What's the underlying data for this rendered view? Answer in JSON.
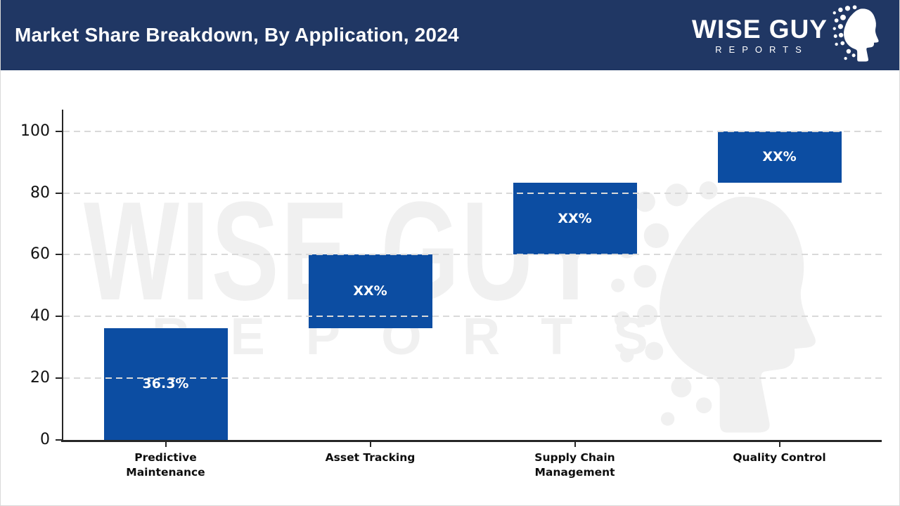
{
  "header": {
    "title": "Market Share Breakdown, By Application, 2024",
    "brand": {
      "line1": "WISE GUY",
      "line2": "REPORTS"
    }
  },
  "watermark": {
    "line1": "WISE GUY",
    "line2": "REPORTS"
  },
  "chart_data": {
    "type": "bar",
    "subtype": "waterfall",
    "title": "Market Share Breakdown, By Application, 2024",
    "categories": [
      [
        "Predictive",
        "Maintenance"
      ],
      [
        "Asset Tracking"
      ],
      [
        "Supply Chain",
        "Management"
      ],
      [
        "Quality Control"
      ]
    ],
    "bars": [
      {
        "name": "Predictive Maintenance",
        "start": 0,
        "end": 36.3,
        "label": "36.3%"
      },
      {
        "name": "Asset Tracking",
        "start": 36.3,
        "end": 60.2,
        "label": "XX%"
      },
      {
        "name": "Supply Chain Management",
        "start": 60.2,
        "end": 83.3,
        "label": "XX%"
      },
      {
        "name": "Quality Control",
        "start": 83.3,
        "end": 100,
        "label": "XX%"
      }
    ],
    "yticks": [
      0,
      20,
      40,
      60,
      80,
      100
    ],
    "ylim": [
      0,
      107
    ],
    "grid": true,
    "grid_style": "dashed",
    "grid_on_top": true,
    "legend": null,
    "colors": {
      "bar": "#0c4da2",
      "value_label": "#ffffff",
      "gridline": "#d9d9d9",
      "axis": "#262626",
      "tick_text": "#111111",
      "header_bg": "#203764",
      "header_text": "#ffffff",
      "watermark": "#f0f0f0",
      "background": "#ffffff"
    }
  }
}
